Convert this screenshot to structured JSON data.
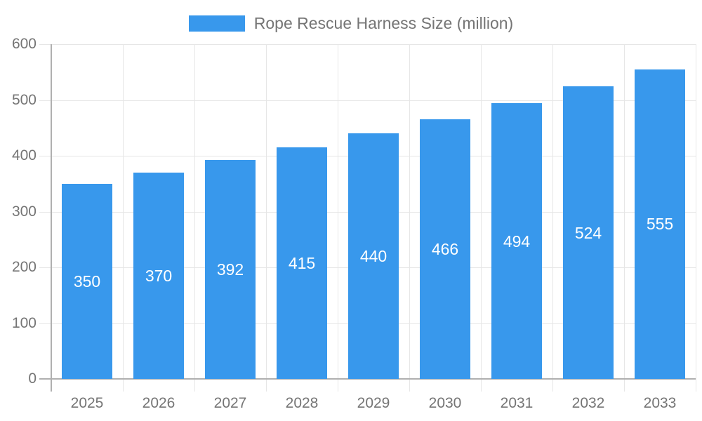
{
  "chart_data": {
    "type": "bar",
    "title": "Rope Rescue Harness Size (million)",
    "categories": [
      "2025",
      "2026",
      "2027",
      "2028",
      "2029",
      "2030",
      "2031",
      "2032",
      "2033"
    ],
    "values": [
      350,
      370,
      392,
      415,
      440,
      466,
      494,
      524,
      555
    ],
    "xlabel": "",
    "ylabel": "",
    "ylim": [
      0,
      600
    ],
    "yticks": [
      0,
      100,
      200,
      300,
      400,
      500,
      600
    ],
    "grid": true,
    "legend_position": "top-center",
    "bar_labels_inside": true,
    "colors": {
      "bar": "#3898EC",
      "bar_label": "#ffffff",
      "grid": "#e6e6e6",
      "axis": "#b0b0b0",
      "tick_label": "#757575",
      "legend_text": "#757575",
      "background": "#ffffff"
    }
  }
}
